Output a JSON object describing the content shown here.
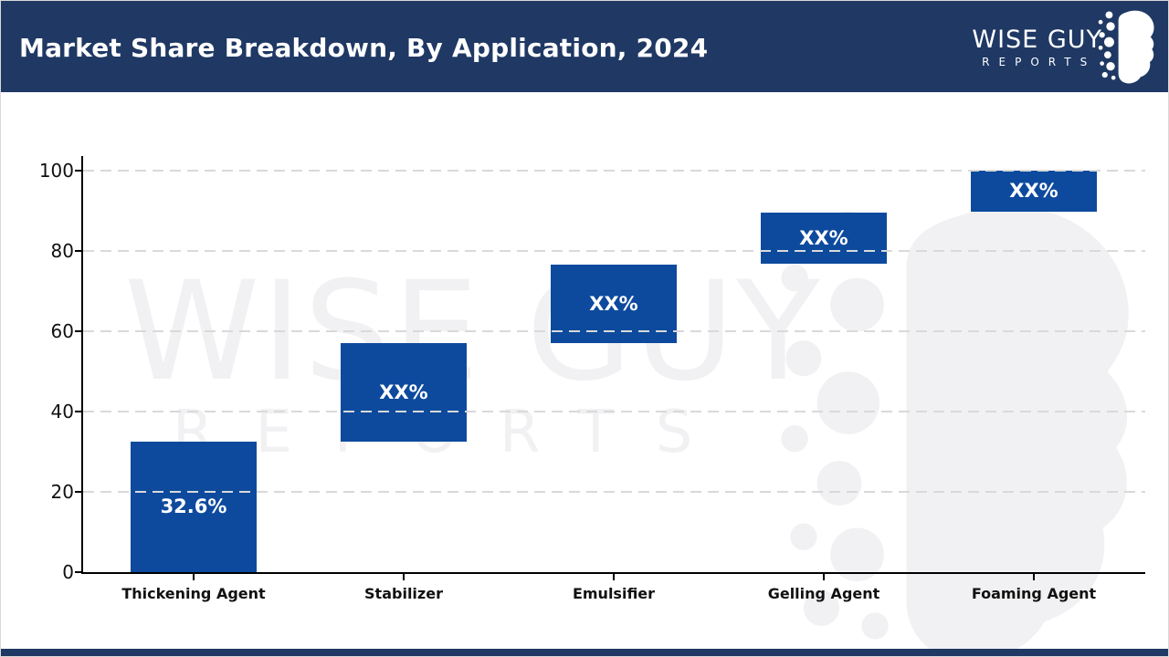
{
  "header": {
    "title": "Market Share Breakdown, By Application, 2024",
    "logo": {
      "wordmark": "WISE GUY",
      "subtext": "REPORTS"
    }
  },
  "watermark": {
    "line1": "WISE GUY",
    "line2": "REPORTS"
  },
  "colors": {
    "header_bg": "#1f3864",
    "footer_bg": "#1f3864",
    "bar": "#0d4a9e",
    "grid": "#d9d9d9",
    "axis": "#000000",
    "bar_label": "#ffffff",
    "watermark": "#f1f1f3"
  },
  "chart_data": {
    "type": "bar",
    "subtype": "waterfall",
    "title": "Market Share Breakdown, By Application, 2024",
    "categories": [
      "Thickening Agent",
      "Stabilizer",
      "Emulsifier",
      "Gelling Agent",
      "Foaming Agent"
    ],
    "segments": [
      {
        "category": "Thickening Agent",
        "start": 0,
        "end": 32.6,
        "label": "32.6%"
      },
      {
        "category": "Stabilizer",
        "start": 32.6,
        "end": 57.0,
        "label": "XX%"
      },
      {
        "category": "Emulsifier",
        "start": 57.0,
        "end": 76.6,
        "label": "XX%"
      },
      {
        "category": "Gelling Agent",
        "start": 76.8,
        "end": 89.5,
        "label": "XX%"
      },
      {
        "category": "Foaming Agent",
        "start": 89.8,
        "end": 100,
        "label": "XX%"
      }
    ],
    "xlabel": "",
    "ylabel": "",
    "ylim": [
      0,
      100
    ],
    "yticks": [
      0,
      20,
      40,
      60,
      80,
      100
    ],
    "grid": "horizontal-dashed",
    "legend": "none"
  }
}
